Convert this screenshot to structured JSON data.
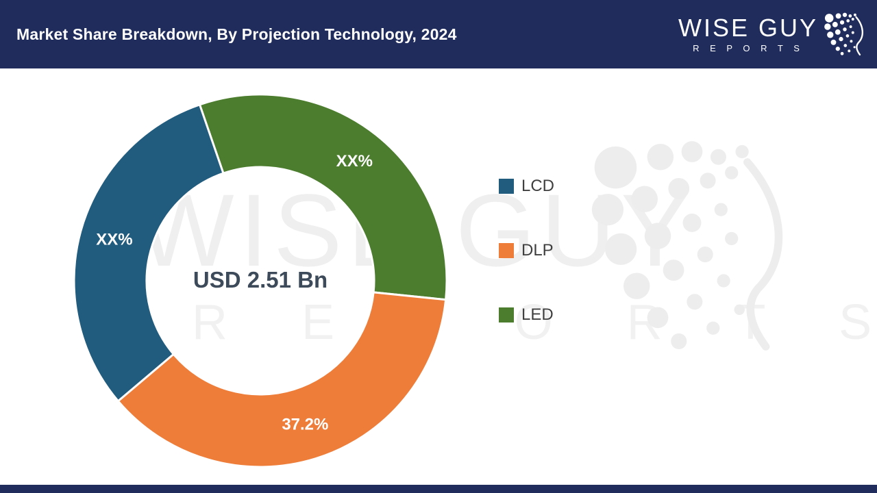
{
  "header": {
    "title": "Market Share Breakdown, By Projection Technology, 2024",
    "logo": {
      "line1": "WISE GUY",
      "line2": "R E P O R T S"
    }
  },
  "watermark": {
    "line1": "WISE GUY",
    "line2": "R E P O R T S"
  },
  "chart_data": {
    "type": "pie",
    "donut": true,
    "title": "Market Share Breakdown, By Projection Technology, 2024",
    "center_label": "USD 2.51 Bn",
    "start_angle_deg": -19,
    "legend_position": "right",
    "segments": [
      {
        "name": "LED",
        "label": "XX%",
        "value": 31.9,
        "color": "#4c7c2e"
      },
      {
        "name": "DLP",
        "label": "37.2%",
        "value": 37.2,
        "color": "#ee7d3a"
      },
      {
        "name": "LCD",
        "label": "XX%",
        "value": 30.9,
        "color": "#215c7e"
      }
    ],
    "legend": [
      {
        "name": "LCD",
        "color": "#215c7e"
      },
      {
        "name": "DLP",
        "color": "#ee7d3a"
      },
      {
        "name": "LED",
        "color": "#4c7c2e"
      }
    ]
  },
  "colors": {
    "header_bg": "#202c5c",
    "footer_bg": "#202c5c",
    "center_text": "#3c4a59"
  }
}
